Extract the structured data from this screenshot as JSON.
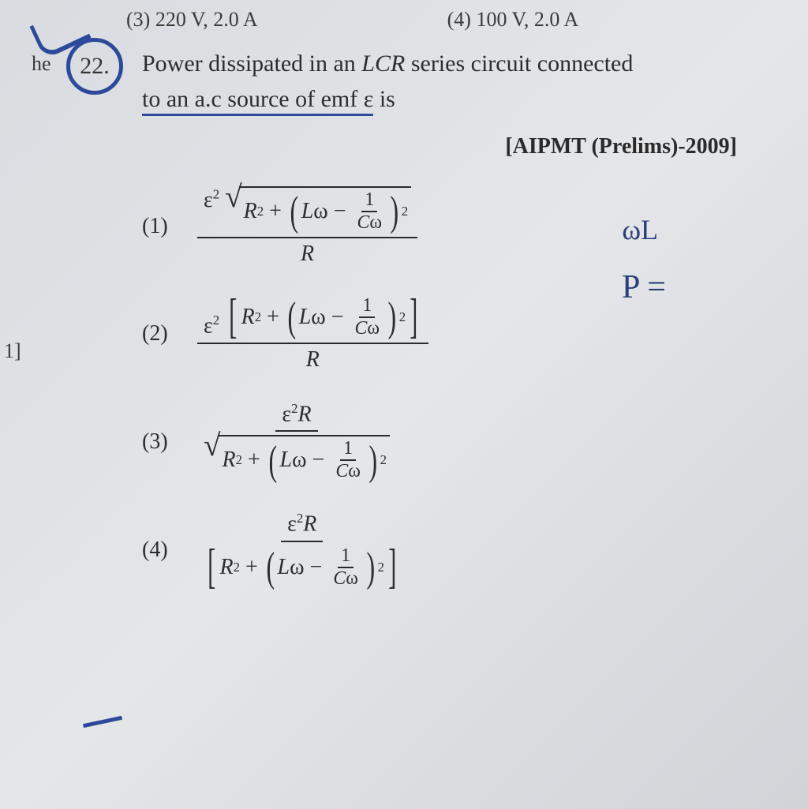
{
  "top_partial": {
    "option3": "(3)  220 V, 2.0 A",
    "option4": "(4)  100 V, 2.0 A"
  },
  "margin_left_note": "he",
  "question": {
    "number": "22.",
    "text_part1": "Power dissipated in an ",
    "lcr": "LCR",
    "text_part2": " series circuit connected",
    "text_part3": "to an a.c source of emf ε",
    "text_part4": " is"
  },
  "source_tag": "[AIPMT (Prelims)-2009]",
  "options": {
    "opt1_num": "(1)",
    "opt2_num": "(2)",
    "opt3_num": "(3)",
    "opt4_num": "(4)"
  },
  "symbols": {
    "epsilon": "ε",
    "R": "R",
    "L": "L",
    "omega": "ω",
    "C": "C",
    "one": "1",
    "two": "2",
    "minus": "−",
    "plus": "+"
  },
  "left_margin_1": "1]",
  "handwriting": {
    "wl": "ωL",
    "p_eq": "P ="
  },
  "colors": {
    "text": "#2a2a2a",
    "ink_blue": "#2d4a9a",
    "bg_start": "#d8dce0",
    "bg_end": "#d0d4d8"
  },
  "typography": {
    "body_fontsize_pt": 22,
    "source_fontsize_pt": 21,
    "question_fontsize_pt": 23
  }
}
